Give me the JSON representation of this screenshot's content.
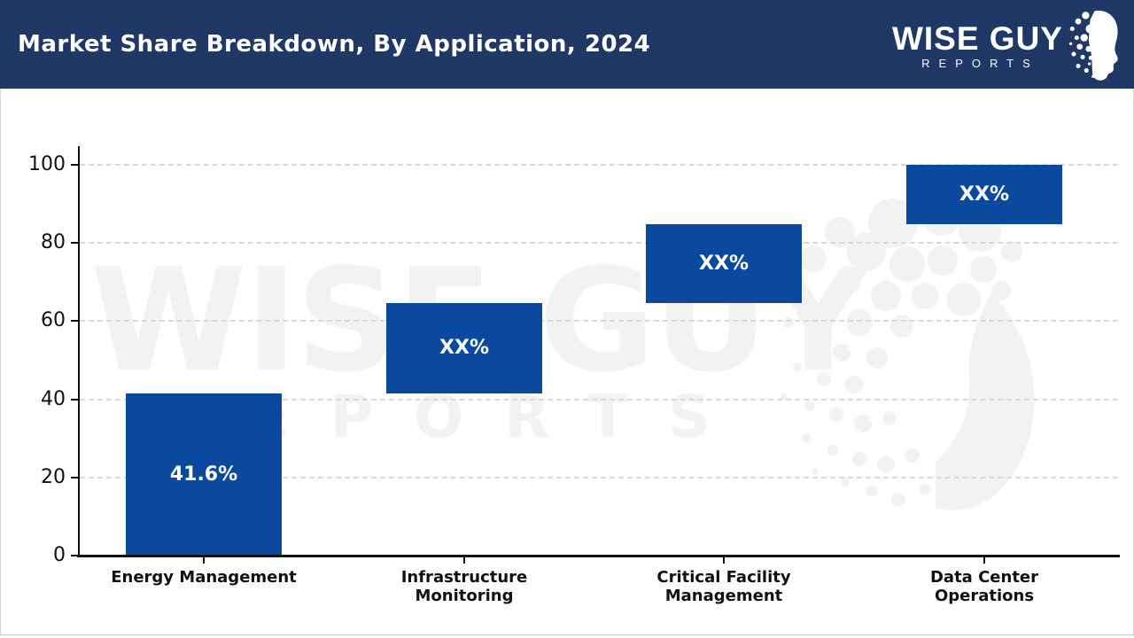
{
  "header": {
    "title": "Market Share Breakdown, By Application, 2024",
    "bg_color": "#203866",
    "logo": {
      "line1": "WISE GUY",
      "line2": "REPORTS"
    }
  },
  "watermark": {
    "line1": "WISE GUY",
    "line2": "REPORTS"
  },
  "chart_data": {
    "type": "bar",
    "subtype": "waterfall-style floating segment bars",
    "title": "Market Share Breakdown, By Application, 2024",
    "categories": [
      "Energy Management",
      "Infrastructure Monitoring",
      "Critical Facility Management",
      "Data Center Operations"
    ],
    "category_label_lines": [
      [
        "Energy Management"
      ],
      [
        "Infrastructure",
        "Monitoring"
      ],
      [
        "Critical Facility",
        "Management"
      ],
      [
        "Data Center",
        "Operations"
      ]
    ],
    "series": [
      {
        "name": "Market share (%)",
        "segments": [
          {
            "base": 0,
            "top": 41.6
          },
          {
            "base": 41.6,
            "top": 64.6
          },
          {
            "base": 64.6,
            "top": 84.8
          },
          {
            "base": 84.8,
            "top": 100
          }
        ]
      }
    ],
    "segment_sizes": [
      41.6,
      23.0,
      20.2,
      15.2
    ],
    "bar_labels": [
      "41.6%",
      "XX%",
      "XX%",
      "XX%"
    ],
    "yticks": [
      0,
      20,
      40,
      60,
      80,
      100
    ],
    "ylim": [
      0,
      105
    ],
    "xlabel": "",
    "ylabel": "",
    "legend": "none",
    "grid": {
      "horizontal": true,
      "style": "dashed",
      "color": "#d9d9d9"
    },
    "colors": {
      "bar": "#0a499e",
      "bar_label": "#ffffff",
      "axis": "#111111"
    }
  }
}
